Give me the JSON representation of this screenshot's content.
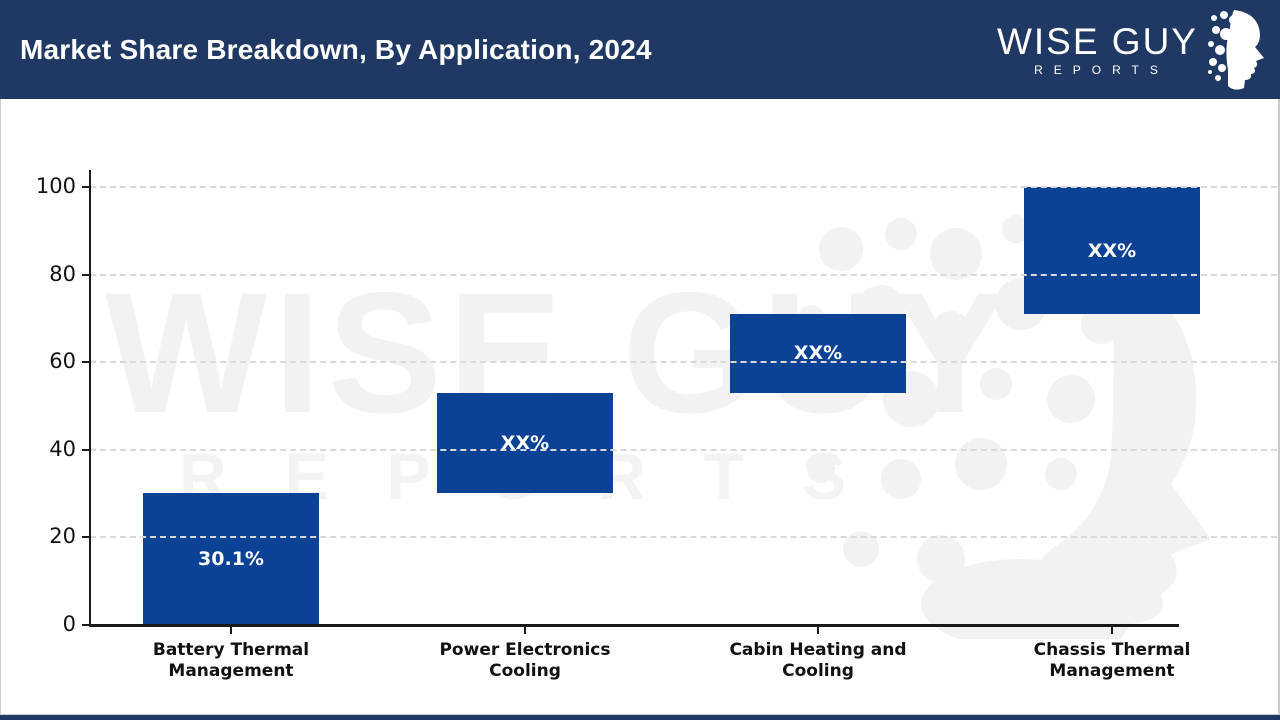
{
  "header": {
    "title": "Market Share Breakdown, By Application, 2024",
    "logo": {
      "wordmark": "WISE GUY",
      "subtitle": "REPORTS"
    },
    "bg_color": "#1f3864"
  },
  "watermark": {
    "line1": "WISE GUY",
    "line2": "REPORTS"
  },
  "chart_data": {
    "type": "bar",
    "subtype": "waterfall-stacked-breakdown",
    "title": "Market Share Breakdown, By Application, 2024",
    "categories": [
      "Battery Thermal\nManagement",
      "Power Electronics\nCooling",
      "Cabin Heating and\nCooling",
      "Chassis Thermal\nManagement"
    ],
    "segments": [
      {
        "category": "Battery Thermal Management",
        "start": 0,
        "end": 30.1,
        "value_label": "30.1%"
      },
      {
        "category": "Power Electronics Cooling",
        "start": 30.1,
        "end": 53,
        "value_label": "XX%"
      },
      {
        "category": "Cabin Heating and Cooling",
        "start": 53,
        "end": 71,
        "value_label": "XX%"
      },
      {
        "category": "Chassis Thermal Management",
        "start": 71,
        "end": 100,
        "value_label": "XX%"
      }
    ],
    "ylim": [
      0,
      100
    ],
    "yticks": [
      0,
      20,
      40,
      60,
      80,
      100
    ],
    "grid": "horizontal-dashed",
    "legend": "none",
    "bar_color": "#0b4295",
    "bar_label_color": "#ffffff",
    "axis_color": "#1a1a1a",
    "gridline_color": "#d9d9d9"
  },
  "footer": {
    "bar_color": "#1f3864"
  }
}
